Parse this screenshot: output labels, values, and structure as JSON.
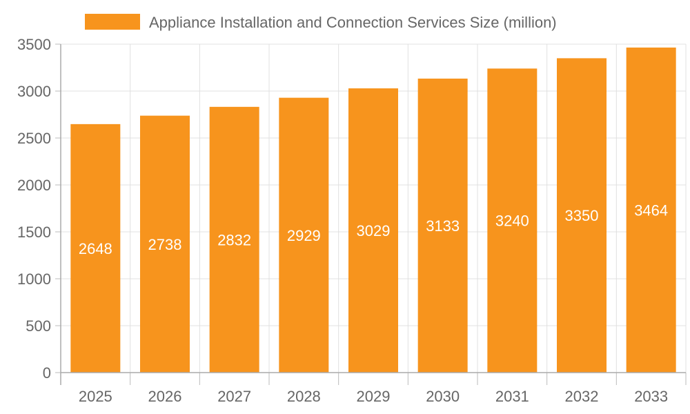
{
  "chart_data": {
    "type": "bar",
    "title": "",
    "xlabel": "",
    "ylabel": "",
    "categories": [
      "2025",
      "2026",
      "2027",
      "2028",
      "2029",
      "2030",
      "2031",
      "2032",
      "2033"
    ],
    "series": [
      {
        "name": "Appliance Installation and Connection Services Size (million)",
        "values": [
          2648,
          2738,
          2832,
          2929,
          3029,
          3133,
          3240,
          3350,
          3464
        ]
      }
    ],
    "ylim": [
      0,
      3500
    ],
    "yticks": [
      0,
      500,
      1000,
      1500,
      2000,
      2500,
      3000,
      3500
    ],
    "grid": true,
    "legend_position": "top",
    "data_labels": "inside-center",
    "colors": {
      "bar": "#F7941D",
      "label": "#FFFFFF",
      "text": "#666666",
      "grid": "#E0E0E0"
    }
  }
}
